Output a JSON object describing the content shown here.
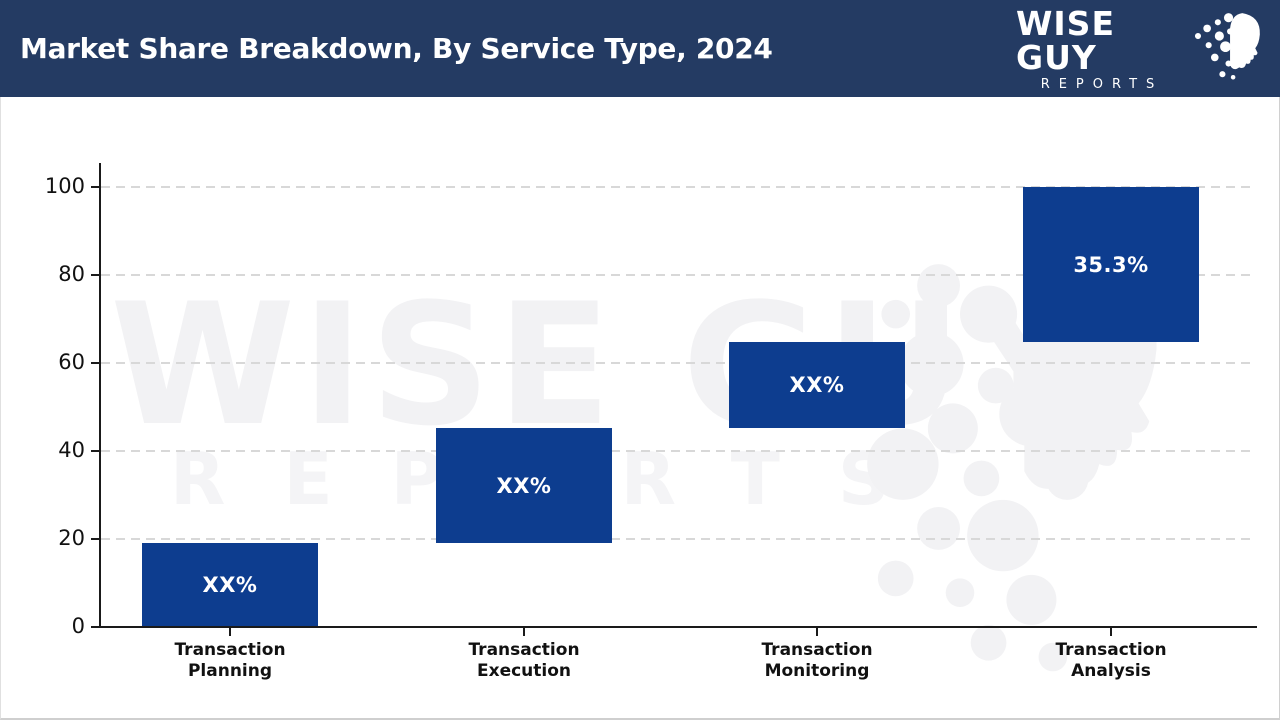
{
  "header": {
    "title": "Market Share Breakdown, By Service Type, 2024",
    "logo": {
      "line1": "WISE GUY",
      "line2": "REPORTS"
    }
  },
  "watermark": {
    "line1": "WISE GUY",
    "line2": "REPORTS"
  },
  "colors": {
    "header_bg": "#243b63",
    "bar": "#0d3d8f",
    "axis": "#1a1a1a",
    "gridline": "#d8d8d8",
    "watermark": "#f2f2f4"
  },
  "chart_data": {
    "type": "bar",
    "subtype": "waterfall-floating-bars",
    "title": "Market Share Breakdown, By Service Type, 2024",
    "xlabel": "",
    "ylabel": "",
    "ylim": [
      0,
      105
    ],
    "yticks": [
      0,
      20,
      40,
      60,
      80,
      100
    ],
    "grid": "horizontal-dashed",
    "legend": "none",
    "categories": [
      "Transaction Planning",
      "Transaction Execution",
      "Transaction Monitoring",
      "Transaction Analysis"
    ],
    "category_lines": [
      [
        "Transaction",
        "Planning"
      ],
      [
        "Transaction",
        "Execution"
      ],
      [
        "Transaction",
        "Monitoring"
      ],
      [
        "Transaction",
        "Analysis"
      ]
    ],
    "segments": [
      {
        "category": "Transaction Planning",
        "start": 0,
        "end": 19.1,
        "value": 19.1,
        "label": "XX%"
      },
      {
        "category": "Transaction Execution",
        "start": 19.1,
        "end": 45.2,
        "value": 26.1,
        "label": "XX%"
      },
      {
        "category": "Transaction Monitoring",
        "start": 45.2,
        "end": 64.7,
        "value": 19.5,
        "label": "XX%"
      },
      {
        "category": "Transaction Analysis",
        "start": 64.7,
        "end": 100,
        "value": 35.3,
        "label": "35.3%"
      }
    ]
  }
}
